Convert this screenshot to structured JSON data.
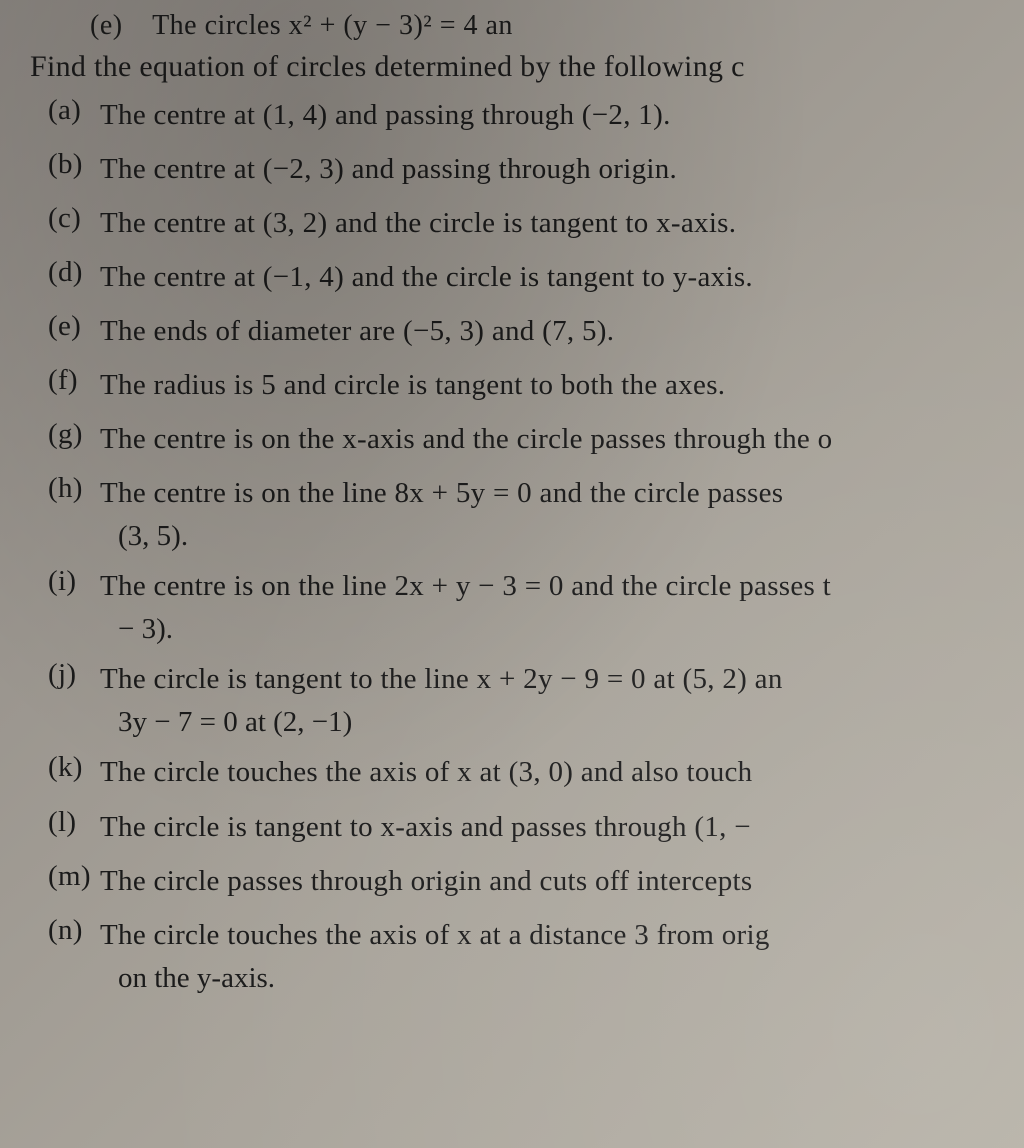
{
  "topItem": {
    "label": "(e)",
    "text": "The circles x² + (y − 3)² = 4 an"
  },
  "intro": "Find the equation of circles determined by the following c",
  "items": [
    {
      "label": "(a)",
      "text": "The centre at (1, 4) and passing through (−2, 1)."
    },
    {
      "label": "(b)",
      "text": "The centre at (−2, 3) and passing through origin."
    },
    {
      "label": "(c)",
      "text": "The centre at (3, 2) and the circle is tangent to x-axis."
    },
    {
      "label": "(d)",
      "text": "The centre at (−1, 4) and the circle is tangent to y-axis."
    },
    {
      "label": "(e)",
      "text": "The ends of diameter are (−5, 3) and (7, 5)."
    },
    {
      "label": "(f)",
      "text": "The radius is 5 and circle is tangent to both the axes."
    },
    {
      "label": "(g)",
      "text": "The centre is on the x-axis and the circle passes through the o"
    },
    {
      "label": "(h)",
      "text": "The centre is on the line 8x + 5y = 0 and the circle passes",
      "sub": "(3, 5)."
    },
    {
      "label": "(i)",
      "text": "The centre is on the line 2x + y − 3 = 0 and the circle passes t",
      "sub": "− 3)."
    },
    {
      "label": "(j)",
      "text": "The circle is tangent to the line x + 2y − 9 = 0 at (5, 2) an",
      "sub": "3y − 7 = 0 at (2, −1)"
    },
    {
      "label": "(k)",
      "text": "The circle touches the axis of x at (3, 0) and also touch"
    },
    {
      "label": "(l)",
      "text": "The circle is tangent to x-axis and passes through (1, −"
    },
    {
      "label": "(m)",
      "text": "The circle passes through origin and cuts off intercepts"
    },
    {
      "label": "(n)",
      "text": "The circle touches the axis of x at a distance 3 from orig",
      "sub": "on the y-axis."
    }
  ]
}
